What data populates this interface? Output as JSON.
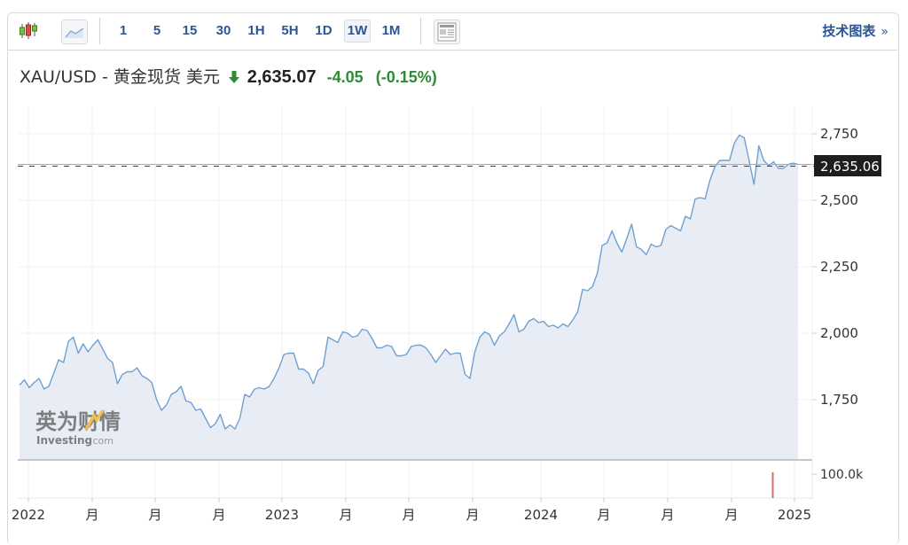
{
  "toolbar": {
    "chart_type_icons": [
      {
        "name": "candlestick-icon",
        "active": false
      },
      {
        "name": "area-chart-icon",
        "active": true
      }
    ],
    "intervals": [
      {
        "label": "1",
        "active": false
      },
      {
        "label": "5",
        "active": false
      },
      {
        "label": "15",
        "active": false
      },
      {
        "label": "30",
        "active": false
      },
      {
        "label": "1H",
        "active": false
      },
      {
        "label": "5H",
        "active": false
      },
      {
        "label": "1D",
        "active": false
      },
      {
        "label": "1W",
        "active": true
      },
      {
        "label": "1M",
        "active": false
      }
    ],
    "layout_icon": "layout-panel-icon",
    "tech_chart_link": "技术图表",
    "tech_chart_arrows": "»"
  },
  "quote": {
    "symbol": "XAU/USD - 黄金现货 美元",
    "direction_icon": "down-arrow-icon",
    "price": "2,635.07",
    "change": "-4.05",
    "change_pct": "(-0.15%)",
    "change_color": "#2e8b35"
  },
  "watermark": {
    "brand_cn": "英为财情",
    "brand_en": "Investing",
    "brand_suffix": ".com"
  },
  "chart_data": {
    "type": "area",
    "title": "XAU/USD - 黄金现货 美元",
    "interval": "1W",
    "xlabel": "",
    "ylabel": "",
    "ylim": [
      1520,
      2800
    ],
    "y_ticks": [
      "2,750",
      "2,500",
      "2,250",
      "2,000",
      "1,750"
    ],
    "y_tick_values": [
      2750,
      2500,
      2250,
      2000,
      1750
    ],
    "x_tick_labels": [
      "2022",
      "月",
      "月",
      "月",
      "2023",
      "月",
      "月",
      "月",
      "2024",
      "月",
      "月",
      "月",
      "2025"
    ],
    "current_price_label": "2,635.06",
    "current_price": 2635.06,
    "volume_axis_label": "100.0k",
    "grid": true,
    "legend": "none",
    "line_color": "#6fa0d2",
    "fill_color": "#e8edf5",
    "x_start": "2021-12",
    "x_end": "2025-01",
    "values": [
      1805,
      1825,
      1795,
      1815,
      1830,
      1790,
      1800,
      1850,
      1900,
      1890,
      1970,
      1985,
      1925,
      1960,
      1930,
      1955,
      1975,
      1940,
      1905,
      1890,
      1810,
      1845,
      1855,
      1855,
      1870,
      1840,
      1830,
      1815,
      1750,
      1710,
      1730,
      1770,
      1780,
      1800,
      1745,
      1740,
      1710,
      1715,
      1680,
      1645,
      1660,
      1695,
      1640,
      1655,
      1640,
      1680,
      1770,
      1760,
      1790,
      1795,
      1790,
      1800,
      1830,
      1870,
      1920,
      1925,
      1925,
      1865,
      1865,
      1850,
      1810,
      1860,
      1875,
      1985,
      1975,
      1965,
      2005,
      2000,
      1985,
      1990,
      2015,
      2010,
      1980,
      1945,
      1945,
      1955,
      1950,
      1915,
      1915,
      1920,
      1950,
      1955,
      1955,
      1945,
      1920,
      1890,
      1915,
      1940,
      1920,
      1925,
      1925,
      1845,
      1830,
      1930,
      1985,
      2005,
      1995,
      1955,
      1990,
      2005,
      2035,
      2070,
      2005,
      2015,
      2045,
      2055,
      2040,
      2045,
      2025,
      2030,
      2020,
      2035,
      2025,
      2050,
      2080,
      2165,
      2160,
      2175,
      2225,
      2330,
      2340,
      2385,
      2340,
      2305,
      2355,
      2410,
      2325,
      2315,
      2295,
      2335,
      2325,
      2330,
      2390,
      2405,
      2395,
      2385,
      2440,
      2430,
      2505,
      2510,
      2505,
      2575,
      2625,
      2650,
      2650,
      2650,
      2715,
      2745,
      2735,
      2650,
      2560,
      2705,
      2650,
      2630,
      2645,
      2620,
      2620,
      2635,
      2640,
      2635
    ]
  }
}
